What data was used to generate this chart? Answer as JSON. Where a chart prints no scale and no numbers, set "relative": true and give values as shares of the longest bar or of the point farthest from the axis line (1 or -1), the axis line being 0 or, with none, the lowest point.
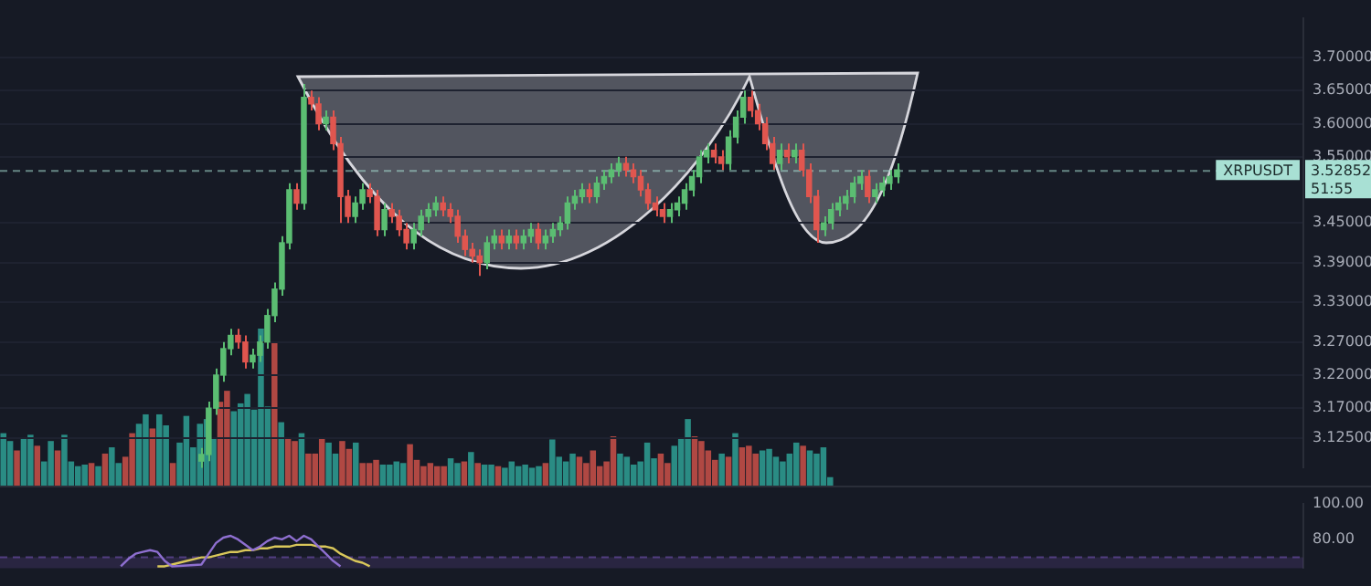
{
  "chart_data": [
    {
      "type": "candlestick",
      "tick_labels": "y",
      "grid": "y",
      "categories": [
        null,
        null,
        null,
        null,
        null,
        null,
        null,
        null,
        null,
        null,
        null,
        null,
        null,
        null,
        null,
        null,
        null,
        null,
        null,
        null,
        null,
        null,
        null,
        null,
        null,
        null,
        null,
        null,
        null,
        null,
        null,
        null,
        null,
        null,
        null,
        null,
        null,
        null,
        null,
        null,
        null,
        null,
        null,
        null,
        null,
        null,
        null,
        null,
        null,
        null,
        null,
        null,
        null,
        null,
        null,
        null,
        null,
        null,
        null,
        null,
        null,
        null,
        null,
        null,
        null,
        null,
        null,
        null,
        null,
        null,
        null,
        null,
        null,
        null,
        null,
        null,
        null,
        null,
        null,
        null,
        null,
        null,
        null,
        null,
        null,
        null,
        null,
        null,
        null,
        null,
        null,
        null,
        null,
        null,
        null,
        null,
        null,
        null,
        null,
        null,
        null,
        null,
        null,
        null,
        null,
        null,
        null,
        null,
        null,
        null,
        null,
        null,
        null,
        null,
        null,
        null,
        null,
        null,
        null,
        null,
        null,
        null,
        null,
        null,
        null,
        null,
        null,
        null,
        null,
        null,
        null,
        null,
        null,
        null,
        null,
        null,
        null,
        null,
        null,
        null,
        null,
        null,
        null,
        null,
        null,
        null,
        null,
        null,
        null,
        null,
        null,
        null,
        null,
        null,
        null,
        null,
        null,
        null,
        null,
        null,
        null,
        null,
        null,
        null,
        null,
        null,
        null,
        null,
        null,
        null,
        null,
        null,
        null,
        null,
        null,
        null,
        null,
        null
      ],
      "ylim": [
        3.08,
        3.76
      ],
      "yticks": [
        {
          "value": 3.125,
          "label": "3.12500"
        },
        {
          "value": 3.17,
          "label": "3.17000"
        },
        {
          "value": 3.22,
          "label": "3.22000"
        },
        {
          "value": 3.27,
          "label": "3.27000"
        },
        {
          "value": 3.33,
          "label": "3.33000"
        },
        {
          "value": 3.39,
          "label": "3.39000"
        },
        {
          "value": 3.45,
          "label": "3.45000"
        },
        {
          "value": 3.55,
          "label": "3.55000"
        },
        {
          "value": 3.6,
          "label": "3.60000"
        },
        {
          "value": 3.65,
          "label": "3.65000"
        },
        {
          "value": 3.7,
          "label": "3.70000"
        }
      ],
      "ref_lines": [
        {
          "axis": "y",
          "value": 3.52852,
          "label": "3.52852",
          "line_style": "dashed",
          "color": "#a8e0d4"
        }
      ],
      "annotations": [
        "XRPUSDT",
        "51:55"
      ],
      "series": [
        {
          "type": "candlestick",
          "ohlc": [
            null,
            null,
            null,
            null,
            null,
            null,
            null,
            null,
            null,
            null,
            null,
            null,
            null,
            null,
            null,
            null,
            null,
            null,
            null,
            null,
            null,
            null,
            null,
            null,
            null,
            null,
            null,
            [
              3.09,
              3.11,
              3.08,
              3.1
            ],
            [
              3.1,
              3.18,
              3.09,
              3.17
            ],
            [
              3.17,
              3.23,
              3.16,
              3.22
            ],
            [
              3.22,
              3.27,
              3.21,
              3.26
            ],
            [
              3.26,
              3.29,
              3.25,
              3.28
            ],
            [
              3.28,
              3.29,
              3.26,
              3.27
            ],
            [
              3.27,
              3.28,
              3.23,
              3.24
            ],
            [
              3.24,
              3.26,
              3.23,
              3.25
            ],
            [
              3.25,
              3.28,
              3.24,
              3.27
            ],
            [
              3.27,
              3.32,
              3.26,
              3.31
            ],
            [
              3.31,
              3.36,
              3.3,
              3.35
            ],
            [
              3.35,
              3.43,
              3.34,
              3.42
            ],
            [
              3.42,
              3.51,
              3.41,
              3.5
            ],
            [
              3.5,
              3.51,
              3.47,
              3.48
            ],
            [
              3.48,
              3.66,
              3.47,
              3.64
            ],
            [
              3.64,
              3.65,
              3.62,
              3.63
            ],
            [
              3.63,
              3.64,
              3.59,
              3.6
            ],
            [
              3.6,
              3.62,
              3.59,
              3.61
            ],
            [
              3.61,
              3.62,
              3.56,
              3.57
            ],
            [
              3.57,
              3.58,
              3.45,
              3.49
            ],
            [
              3.49,
              3.5,
              3.45,
              3.46
            ],
            [
              3.46,
              3.49,
              3.45,
              3.48
            ],
            [
              3.48,
              3.51,
              3.47,
              3.5
            ],
            [
              3.5,
              3.51,
              3.48,
              3.49
            ],
            [
              3.49,
              3.5,
              3.43,
              3.44
            ],
            [
              3.44,
              3.48,
              3.43,
              3.47
            ],
            [
              3.47,
              3.48,
              3.45,
              3.46
            ],
            [
              3.46,
              3.47,
              3.43,
              3.44
            ],
            [
              3.44,
              3.45,
              3.41,
              3.42
            ],
            [
              3.42,
              3.45,
              3.41,
              3.44
            ],
            [
              3.44,
              3.47,
              3.43,
              3.46
            ],
            [
              3.46,
              3.48,
              3.45,
              3.47
            ],
            [
              3.47,
              3.49,
              3.46,
              3.48
            ],
            [
              3.48,
              3.49,
              3.46,
              3.47
            ],
            [
              3.47,
              3.48,
              3.45,
              3.46
            ],
            [
              3.46,
              3.47,
              3.42,
              3.43
            ],
            [
              3.43,
              3.44,
              3.4,
              3.41
            ],
            [
              3.41,
              3.42,
              3.39,
              3.4
            ],
            [
              3.4,
              3.41,
              3.37,
              3.39
            ],
            [
              3.39,
              3.43,
              3.38,
              3.42
            ],
            [
              3.42,
              3.44,
              3.41,
              3.43
            ],
            [
              3.43,
              3.44,
              3.41,
              3.42
            ],
            [
              3.42,
              3.44,
              3.41,
              3.43
            ],
            [
              3.43,
              3.44,
              3.41,
              3.42
            ],
            [
              3.42,
              3.44,
              3.41,
              3.43
            ],
            [
              3.43,
              3.45,
              3.42,
              3.44
            ],
            [
              3.44,
              3.45,
              3.41,
              3.42
            ],
            [
              3.42,
              3.44,
              3.41,
              3.43
            ],
            [
              3.43,
              3.45,
              3.42,
              3.44
            ],
            [
              3.44,
              3.46,
              3.43,
              3.45
            ],
            [
              3.45,
              3.49,
              3.44,
              3.48
            ],
            [
              3.48,
              3.5,
              3.47,
              3.49
            ],
            [
              3.49,
              3.51,
              3.48,
              3.5
            ],
            [
              3.5,
              3.51,
              3.48,
              3.49
            ],
            [
              3.49,
              3.52,
              3.48,
              3.51
            ],
            [
              3.51,
              3.53,
              3.5,
              3.52
            ],
            [
              3.52,
              3.54,
              3.51,
              3.53
            ],
            [
              3.53,
              3.55,
              3.52,
              3.54
            ],
            [
              3.54,
              3.55,
              3.52,
              3.53
            ],
            [
              3.53,
              3.54,
              3.51,
              3.52
            ],
            [
              3.52,
              3.53,
              3.49,
              3.5
            ],
            [
              3.5,
              3.51,
              3.47,
              3.48
            ],
            [
              3.48,
              3.49,
              3.46,
              3.47
            ],
            [
              3.47,
              3.48,
              3.45,
              3.46
            ],
            [
              3.46,
              3.48,
              3.45,
              3.47
            ],
            [
              3.47,
              3.49,
              3.46,
              3.48
            ],
            [
              3.48,
              3.51,
              3.47,
              3.5
            ],
            [
              3.5,
              3.53,
              3.49,
              3.52
            ],
            [
              3.52,
              3.56,
              3.51,
              3.55
            ],
            [
              3.55,
              3.57,
              3.54,
              3.56
            ],
            [
              3.56,
              3.57,
              3.54,
              3.55
            ],
            [
              3.55,
              3.56,
              3.53,
              3.54
            ],
            [
              3.54,
              3.59,
              3.53,
              3.58
            ],
            [
              3.58,
              3.62,
              3.57,
              3.61
            ],
            [
              3.61,
              3.65,
              3.6,
              3.64
            ],
            [
              3.64,
              3.65,
              3.61,
              3.62
            ],
            [
              3.62,
              3.63,
              3.59,
              3.6
            ],
            [
              3.6,
              3.61,
              3.56,
              3.57
            ],
            [
              3.57,
              3.58,
              3.53,
              3.54
            ],
            [
              3.54,
              3.57,
              3.53,
              3.56
            ],
            [
              3.56,
              3.57,
              3.54,
              3.55
            ],
            [
              3.55,
              3.57,
              3.54,
              3.56
            ],
            [
              3.56,
              3.57,
              3.52,
              3.53
            ],
            [
              3.53,
              3.54,
              3.48,
              3.49
            ],
            [
              3.49,
              3.5,
              3.42,
              3.44
            ],
            [
              3.44,
              3.46,
              3.43,
              3.45
            ],
            [
              3.45,
              3.48,
              3.44,
              3.47
            ],
            [
              3.47,
              3.49,
              3.46,
              3.48
            ],
            [
              3.48,
              3.5,
              3.47,
              3.49
            ],
            [
              3.49,
              3.52,
              3.48,
              3.51
            ],
            [
              3.51,
              3.53,
              3.5,
              3.52
            ],
            [
              3.52,
              3.53,
              3.48,
              3.49
            ],
            [
              3.49,
              3.51,
              3.48,
              3.5
            ],
            [
              3.5,
              3.52,
              3.49,
              3.51
            ],
            [
              3.51,
              3.53,
              3.5,
              3.52
            ],
            [
              3.52,
              3.54,
              3.51,
              3.53
            ],
            null,
            null,
            null,
            null,
            null,
            null,
            null,
            null,
            null,
            null,
            null,
            null,
            null,
            null,
            null,
            null,
            null,
            null,
            null,
            null,
            null,
            null,
            null,
            null,
            null,
            null,
            null,
            null,
            null,
            null,
            null,
            null,
            null,
            null,
            null,
            null,
            null,
            null,
            null,
            null,
            null,
            null,
            null,
            null,
            null,
            null,
            null,
            null,
            null,
            null,
            null,
            null,
            null,
            null,
            null
          ],
          "colors": [
            null,
            null,
            null,
            null,
            null,
            null,
            null,
            null,
            null,
            null,
            null,
            null,
            null,
            null,
            null,
            null,
            null,
            null,
            null,
            null,
            null,
            null,
            null,
            null,
            null,
            null,
            null,
            "#5bbd72",
            "#5bbd72",
            "#5bbd72",
            "#5bbd72",
            "#5bbd72",
            "#e0564f",
            "#e0564f",
            "#5bbd72",
            "#5bbd72",
            "#5bbd72",
            "#5bbd72",
            "#5bbd72",
            "#5bbd72",
            "#e0564f",
            "#5bbd72",
            "#e0564f",
            "#e0564f",
            "#5bbd72",
            "#e0564f",
            "#e0564f",
            "#e0564f",
            "#5bbd72",
            "#5bbd72",
            "#e0564f",
            "#e0564f",
            "#5bbd72",
            "#e0564f",
            "#e0564f",
            "#e0564f",
            "#5bbd72",
            "#5bbd72",
            "#5bbd72",
            "#5bbd72",
            "#e0564f",
            "#e0564f",
            "#e0564f",
            "#e0564f",
            "#e0564f",
            "#e0564f",
            "#5bbd72",
            "#5bbd72",
            "#e0564f",
            "#5bbd72",
            "#e0564f",
            "#5bbd72",
            "#5bbd72",
            "#e0564f",
            "#5bbd72",
            "#5bbd72",
            "#5bbd72",
            "#5bbd72",
            "#5bbd72",
            "#5bbd72",
            "#e0564f",
            "#5bbd72",
            "#5bbd72",
            "#5bbd72",
            "#5bbd72",
            "#e0564f",
            "#e0564f",
            "#e0564f",
            "#e0564f",
            "#e0564f",
            "#e0564f",
            "#5bbd72",
            "#5bbd72",
            "#5bbd72",
            "#5bbd72",
            "#5bbd72",
            "#5bbd72",
            "#e0564f",
            "#e0564f",
            "#5bbd72",
            "#5bbd72",
            "#5bbd72",
            "#e0564f",
            "#e0564f",
            "#e0564f",
            "#e0564f",
            "#5bbd72",
            "#e0564f",
            "#5bbd72",
            "#e0564f",
            "#e0564f",
            "#e0564f",
            "#5bbd72",
            "#5bbd72",
            "#5bbd72",
            "#5bbd72",
            "#5bbd72",
            "#5bbd72",
            "#e0564f",
            "#5bbd72",
            "#5bbd72",
            "#5bbd72",
            "#5bbd72",
            null,
            null,
            null,
            null,
            null,
            null,
            null,
            null,
            null,
            null,
            null,
            null,
            null,
            null,
            null,
            null,
            null,
            null,
            null,
            null,
            null,
            null,
            null,
            null,
            null,
            null,
            null,
            null,
            null,
            null,
            null,
            null,
            null,
            null,
            null,
            null,
            null,
            null,
            null,
            null,
            null,
            null,
            null,
            null,
            null,
            null,
            null,
            null,
            null,
            null,
            null,
            null,
            null,
            null,
            null
          ]
        }
      ]
    },
    {
      "type": "bar",
      "relative": true,
      "tick_labels": false,
      "categories": [
        null,
        null,
        null,
        null,
        null,
        null,
        null,
        null,
        null,
        null,
        null,
        null,
        null,
        null,
        null,
        null,
        null,
        null,
        null,
        null,
        null,
        null,
        null,
        null,
        null,
        null,
        null,
        null,
        null,
        null,
        null,
        null,
        null,
        null,
        null,
        null,
        null,
        null,
        null,
        null,
        null,
        null,
        null,
        null,
        null,
        null,
        null,
        null,
        null,
        null,
        null,
        null,
        null,
        null,
        null,
        null,
        null,
        null,
        null,
        null,
        null,
        null,
        null,
        null,
        null,
        null,
        null,
        null,
        null,
        null,
        null,
        null,
        null,
        null,
        null,
        null,
        null,
        null,
        null,
        null,
        null,
        null,
        null,
        null,
        null,
        null,
        null,
        null,
        null,
        null,
        null,
        null,
        null,
        null,
        null,
        null,
        null,
        null,
        null,
        null,
        null,
        null,
        null,
        null,
        null,
        null,
        null,
        null,
        null,
        null,
        null,
        null,
        null,
        null,
        null,
        null,
        null,
        null,
        null,
        null,
        null,
        null,
        null
      ],
      "values": [
        0.33,
        0.28,
        0.22,
        0.3,
        0.32,
        0.25,
        0.15,
        0.28,
        0.22,
        0.32,
        0.15,
        0.12,
        0.13,
        0.14,
        0.12,
        0.2,
        0.24,
        0.14,
        0.18,
        0.33,
        0.39,
        0.45,
        0.36,
        0.45,
        0.38,
        0.14,
        0.27,
        0.44,
        0.24,
        0.39,
        0.42,
        0.3,
        0.53,
        0.6,
        0.47,
        0.52,
        0.58,
        0.48,
        1,
        0.5,
        0.91,
        0.4,
        0.3,
        0.28,
        0.33,
        0.2,
        0.2,
        0.3,
        0.27,
        0.2,
        0.28,
        0.23,
        0.27,
        0.14,
        0.14,
        0.16,
        0.13,
        0.13,
        0.15,
        0.14,
        0.26,
        0.16,
        0.12,
        0.14,
        0.12,
        0.12,
        0.17,
        0.14,
        0.15,
        0.21,
        0.14,
        0.13,
        0.13,
        0.12,
        0.11,
        0.15,
        0.12,
        0.13,
        0.11,
        0.12,
        0.14,
        0.29,
        0.18,
        0.15,
        0.2,
        0.18,
        0.14,
        0.22,
        0.12,
        0.15,
        0.31,
        0.2,
        0.18,
        0.13,
        0.15,
        0.27,
        0.17,
        0.2,
        0.14,
        0.25,
        0.3,
        0.42,
        0.31,
        0.28,
        0.22,
        0.16,
        0.2,
        0.18,
        0.33,
        0.24,
        0.25,
        0.2,
        0.22,
        0.23,
        0.18,
        0.15,
        0.2,
        0.27,
        0.25,
        0.22,
        0.2,
        0.24,
        0.05
      ],
      "colors": [
        "#2a8c84",
        "#2a8c84",
        "#b04843",
        "#2a8c84",
        "#2a8c84",
        "#b04843",
        "#2a8c84",
        "#2a8c84",
        "#b04843",
        "#2a8c84",
        "#2a8c84",
        "#2a8c84",
        "#2a8c84",
        "#b04843",
        "#2a8c84",
        "#b04843",
        "#2a8c84",
        "#2a8c84",
        "#b04843",
        "#b04843",
        "#2a8c84",
        "#2a8c84",
        "#b04843",
        "#2a8c84",
        "#2a8c84",
        "#b04843",
        "#2a8c84",
        "#2a8c84",
        "#2a8c84",
        "#2a8c84",
        "#2a8c84",
        "#2a8c84",
        "#b04843",
        "#b04843",
        "#2a8c84",
        "#2a8c84",
        "#2a8c84",
        "#2a8c84",
        "#2a8c84",
        "#2a8c84",
        "#b04843",
        "#2a8c84",
        "#b04843",
        "#b04843",
        "#2a8c84",
        "#b04843",
        "#b04843",
        "#b04843",
        "#2a8c84",
        "#2a8c84",
        "#b04843",
        "#b04843",
        "#2a8c84",
        "#b04843",
        "#b04843",
        "#b04843",
        "#2a8c84",
        "#2a8c84",
        "#2a8c84",
        "#2a8c84",
        "#b04843",
        "#b04843",
        "#b04843",
        "#b04843",
        "#b04843",
        "#b04843",
        "#2a8c84",
        "#2a8c84",
        "#b04843",
        "#2a8c84",
        "#b04843",
        "#2a8c84",
        "#2a8c84",
        "#b04843",
        "#2a8c84",
        "#2a8c84",
        "#2a8c84",
        "#2a8c84",
        "#2a8c84",
        "#2a8c84",
        "#b04843",
        "#2a8c84",
        "#2a8c84",
        "#2a8c84",
        "#2a8c84",
        "#b04843",
        "#b04843",
        "#b04843",
        "#b04843",
        "#b04843",
        "#b04843",
        "#2a8c84",
        "#2a8c84",
        "#2a8c84",
        "#2a8c84",
        "#2a8c84",
        "#2a8c84",
        "#b04843",
        "#b04843",
        "#2a8c84",
        "#2a8c84",
        "#2a8c84",
        "#b04843",
        "#b04843",
        "#b04843",
        "#b04843",
        "#2a8c84",
        "#b04843",
        "#2a8c84",
        "#b04843",
        "#b04843",
        "#b04843",
        "#2a8c84",
        "#2a8c84",
        "#2a8c84",
        "#2a8c84",
        "#2a8c84",
        "#2a8c84",
        "#b04843",
        "#2a8c84",
        "#2a8c84",
        "#2a8c84",
        "#2a8c84"
      ]
    },
    {
      "type": "line",
      "tick_labels": "y",
      "marker": "none",
      "categories": [
        null,
        null,
        null,
        null,
        null,
        null,
        null,
        null,
        null,
        null,
        null,
        null,
        null,
        null,
        null,
        null,
        null,
        null,
        null,
        null,
        null,
        null,
        null,
        null,
        null,
        null,
        null,
        null,
        null,
        null,
        null,
        null,
        null,
        null,
        null,
        null,
        null,
        null,
        null,
        null,
        null,
        null,
        null,
        null,
        null,
        null,
        null,
        null,
        null,
        null,
        null,
        null,
        null,
        null,
        null,
        null,
        null,
        null,
        null,
        null,
        null,
        null,
        null,
        null,
        null,
        null,
        null,
        null,
        null,
        null,
        null,
        null,
        null,
        null,
        null,
        null,
        null,
        null,
        null,
        null,
        null,
        null,
        null,
        null,
        null,
        null,
        null,
        null,
        null,
        null,
        null,
        null,
        null,
        null,
        null,
        null,
        null,
        null,
        null,
        null,
        null,
        null,
        null,
        null,
        null,
        null,
        null,
        null,
        null,
        null,
        null,
        null,
        null,
        null,
        null,
        null,
        null,
        null,
        null,
        null,
        null,
        null,
        null,
        null,
        null,
        null,
        null,
        null,
        null,
        null,
        null,
        null,
        null,
        null,
        null,
        null,
        null,
        null,
        null,
        null,
        null,
        null,
        null,
        null,
        null,
        null,
        null,
        null,
        null,
        null,
        null,
        null,
        null,
        null,
        null,
        null,
        null,
        null,
        null,
        null,
        null,
        null,
        null,
        null,
        null,
        null,
        null,
        null,
        null,
        null,
        null,
        null,
        null,
        null,
        null,
        null,
        null,
        null
      ],
      "ylim": [
        64,
        100
      ],
      "yticks": [
        {
          "value": 80,
          "label": "80.00"
        },
        {
          "value": 100,
          "label": "100.00"
        }
      ],
      "ref_lines": [
        {
          "axis": "y",
          "value": 70,
          "line_style": "dashed",
          "color": "#7e57c2"
        }
      ],
      "bands": [
        {
          "axis": "y",
          "from": 64,
          "to": 70,
          "color": "#7e57c2"
        }
      ],
      "series": [
        {
          "color": "#8e6fd0",
          "values": [
            null,
            null,
            null,
            null,
            null,
            null,
            null,
            null,
            null,
            null,
            null,
            null,
            null,
            null,
            null,
            null,
            65,
            69,
            72,
            73,
            74,
            73,
            68,
            65,
            null,
            null,
            null,
            66,
            72,
            78,
            81,
            82,
            80,
            77,
            74,
            76,
            79,
            81,
            80,
            82,
            79,
            82,
            80,
            76,
            72,
            68,
            65,
            null,
            null,
            null,
            null,
            null,
            null,
            null,
            null,
            null,
            null,
            null,
            null,
            null,
            null,
            null,
            null,
            null,
            null,
            null,
            null,
            null,
            null,
            null,
            null,
            null,
            null,
            null,
            null,
            null,
            null,
            null,
            null,
            null,
            null,
            null,
            null,
            null,
            null,
            null,
            null,
            null,
            null,
            null,
            null,
            null,
            null,
            null,
            null,
            null,
            null,
            null,
            null,
            null,
            null,
            null,
            null,
            null,
            null,
            null,
            null,
            null,
            null,
            null,
            null,
            null,
            null,
            null,
            null,
            null,
            null,
            null,
            null,
            null,
            null,
            null,
            null,
            null,
            null,
            null,
            null,
            null,
            null,
            null,
            null,
            null,
            null,
            null,
            null,
            null,
            null,
            null,
            null,
            null,
            null,
            null,
            null,
            null,
            null,
            null,
            null,
            null,
            null,
            null,
            null,
            null,
            null,
            null,
            null,
            null,
            null,
            null,
            null,
            null,
            null,
            null,
            null,
            null,
            null,
            null,
            null,
            null,
            null,
            null,
            null,
            null,
            null,
            null,
            null,
            null,
            null,
            null
          ]
        },
        {
          "color": "#d9c75a",
          "values": [
            null,
            null,
            null,
            null,
            null,
            null,
            null,
            null,
            null,
            null,
            null,
            null,
            null,
            null,
            null,
            null,
            null,
            null,
            null,
            null,
            null,
            65,
            65,
            66,
            67,
            68,
            69,
            70,
            70,
            71,
            72,
            73,
            73,
            74,
            74,
            75,
            75,
            76,
            76,
            76,
            77,
            77,
            77,
            76,
            76,
            75,
            72,
            70,
            68,
            67,
            65,
            null,
            null,
            null,
            null,
            null,
            null,
            null,
            null,
            null,
            null,
            null,
            null,
            null,
            null,
            null,
            null,
            null,
            null,
            null,
            null,
            null,
            null,
            null,
            null,
            null,
            null,
            null,
            null,
            null,
            null,
            null,
            null,
            null,
            null,
            null,
            null,
            null,
            null,
            null,
            null,
            null,
            null,
            null,
            null,
            null,
            null,
            null,
            null,
            null,
            null,
            null,
            null,
            null,
            null,
            null,
            null,
            null,
            null,
            null,
            null,
            null,
            null,
            null,
            null,
            null,
            null,
            null,
            null,
            null,
            null,
            null,
            null,
            null,
            null,
            null,
            null,
            null,
            null,
            null,
            null,
            null,
            null,
            null,
            null,
            null,
            null,
            null,
            null,
            null,
            null,
            null,
            null,
            null,
            null,
            null,
            null,
            null,
            null,
            null,
            null,
            null,
            null,
            null,
            null,
            null,
            null,
            null,
            null,
            null,
            null,
            null,
            null,
            null,
            null,
            null,
            null,
            null,
            null,
            null,
            null,
            null,
            null,
            null,
            null,
            null,
            null,
            null
          ]
        }
      ]
    }
  ]
}
